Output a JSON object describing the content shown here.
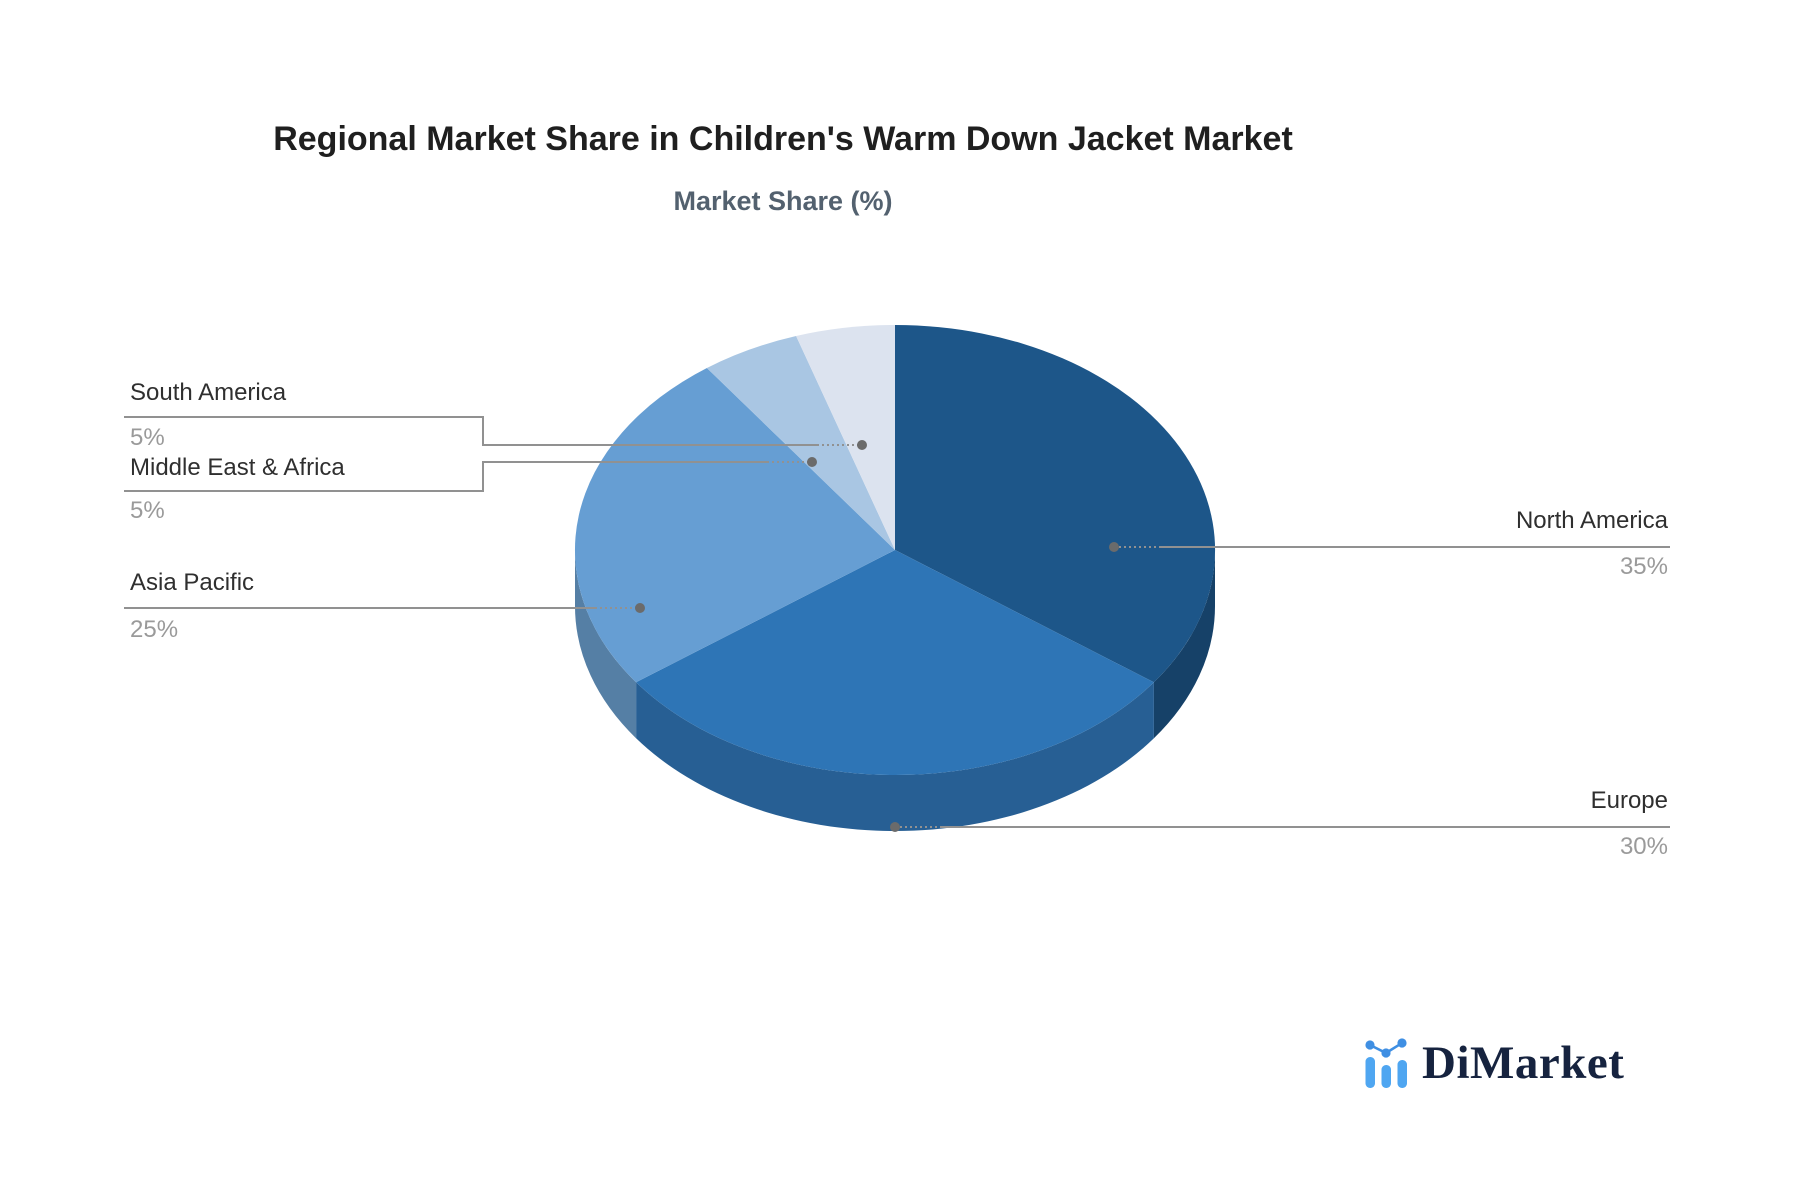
{
  "header": {
    "title": "Regional Market Share in Children's Warm Down Jacket Market",
    "subtitle": "Market Share (%)"
  },
  "chart_data": {
    "type": "pie",
    "title": "Regional Market Share in Children's Warm Down Jacket Market",
    "subtitle": "Market Share (%)",
    "unit": "%",
    "effect_3d": true,
    "start_angle": "12-o-clock",
    "direction": "clockwise",
    "legend_position": "callout-labels",
    "slices": [
      {
        "label": "North America",
        "value": 35,
        "pct_label": "35%",
        "color": "#1d5689",
        "side_color": "#164168"
      },
      {
        "label": "Europe",
        "value": 30,
        "pct_label": "30%",
        "color": "#2e75b6",
        "side_color": "#275f94"
      },
      {
        "label": "Asia Pacific",
        "value": 25,
        "pct_label": "25%",
        "color": "#669ed3",
        "side_color": "#557fa5"
      },
      {
        "label": "Middle East & Africa",
        "value": 5,
        "pct_label": "5%",
        "color": "#a9c6e3",
        "side_color": "#8ba3bb"
      },
      {
        "label": "South America",
        "value": 5,
        "pct_label": "5%",
        "color": "#dce3ef",
        "side_color": "#b6bfcc"
      }
    ]
  },
  "branding": {
    "name": "DiMarket",
    "icon": "bar-line-chart-logo-icon"
  },
  "colors": {
    "background": "#ffffff",
    "title_text": "#1f1f1f",
    "subtitle_text": "#53616f",
    "label_text": "#2f2f2f",
    "pct_text": "#9a9a9a",
    "leader_line": "#919191",
    "leader_dot": "#6b6b6b",
    "logo_text": "#16233f",
    "logo_accent": "#4fa6f1",
    "logo_accent_dark": "#3f8fe3"
  }
}
